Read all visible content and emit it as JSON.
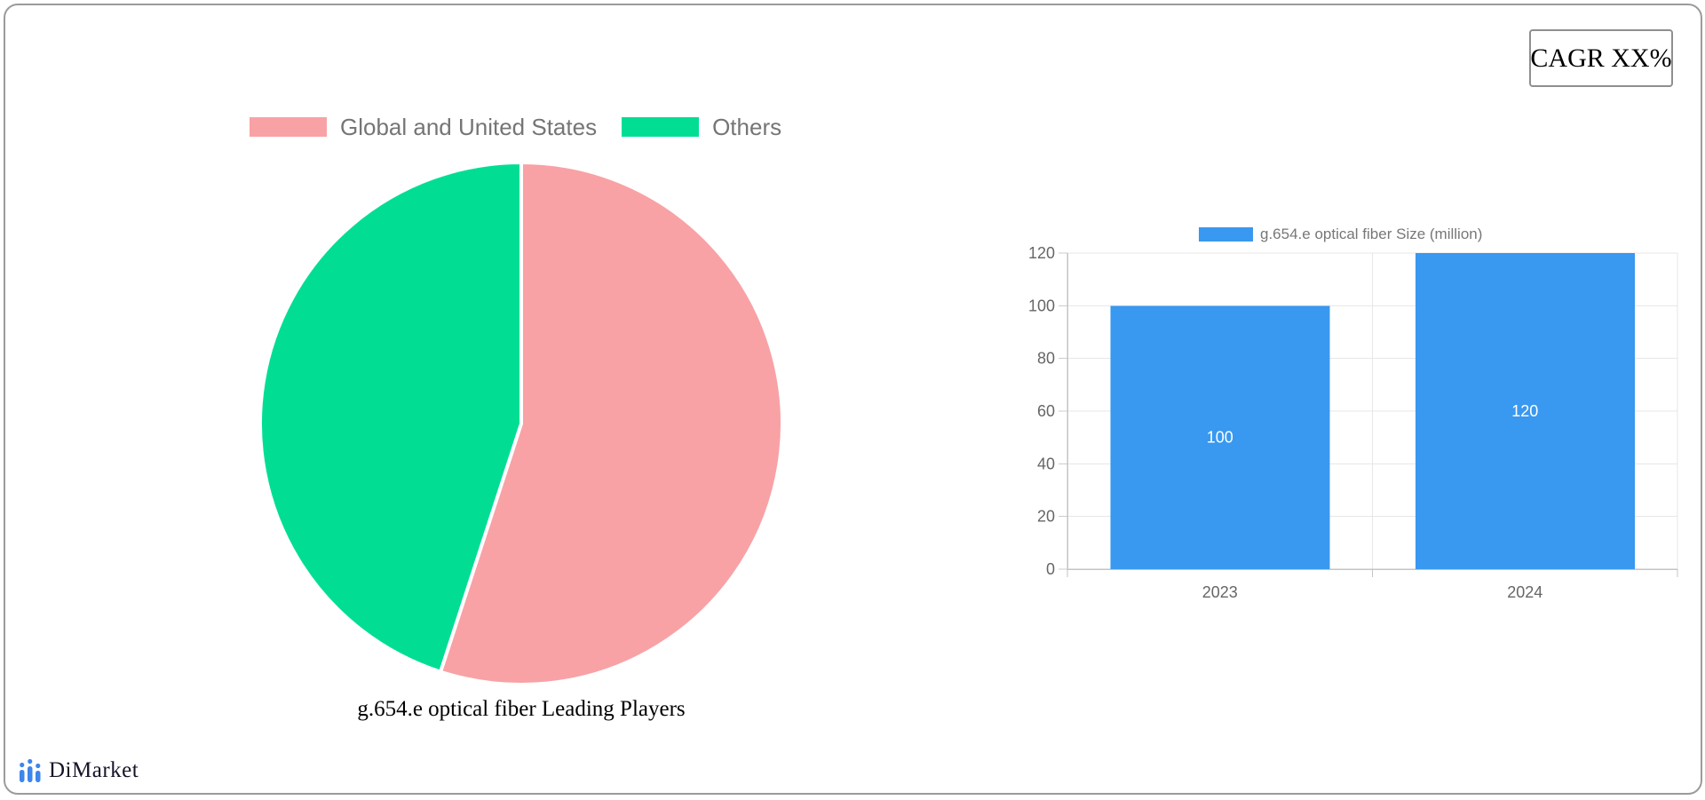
{
  "cagr_box": {
    "label": "CAGR XX%"
  },
  "logo": {
    "text": "DiMarket",
    "accent_color": "#3c86ec"
  },
  "colors": {
    "card_border": "#9b9b9b",
    "axis_line": "#c4c4c4",
    "gridline": "#e7e7e7",
    "tick": "#cccccc",
    "axis_text": "#666666",
    "legend_text": "#757575",
    "bar_value_label": "#ffffff"
  },
  "chart_data": [
    {
      "type": "pie",
      "title": "g.654.e optical fiber Leading Players",
      "labels": [
        "Global and United States",
        "Others"
      ],
      "values": [
        55,
        45
      ],
      "colors": [
        "#f8a2a6",
        "#01de94"
      ],
      "start_angle_deg": 0,
      "direction": "clockwise",
      "legend_position": "top",
      "separator_color": "#ffffff"
    },
    {
      "type": "bar",
      "categories": [
        "2023",
        "2024"
      ],
      "series": [
        {
          "name": "g.654.e optical fiber Size (million)",
          "values": [
            100,
            120
          ],
          "color": "#3998ef"
        }
      ],
      "data_labels": [
        100,
        120
      ],
      "ylim": [
        0,
        120
      ],
      "yticks": [
        0,
        20,
        40,
        60,
        80,
        100,
        120
      ],
      "grid": true,
      "legend_position": "top"
    }
  ]
}
